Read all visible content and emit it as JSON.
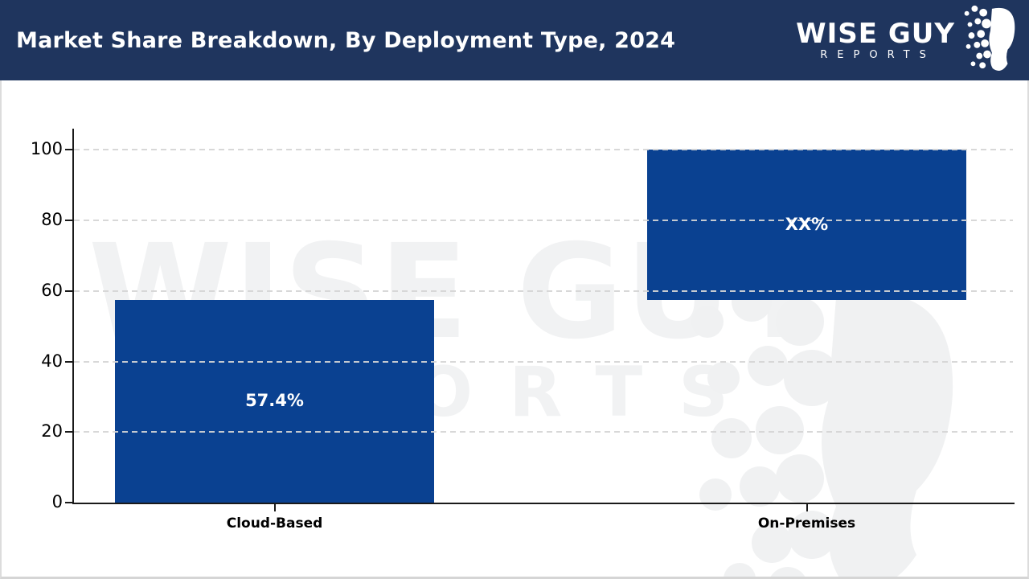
{
  "header": {
    "title": "Market Share Breakdown, By Deployment Type, 2024",
    "logo": {
      "name": "WISE GUY REPORTS",
      "line1": "WISE GUY",
      "line2": "REPORTS"
    }
  },
  "watermark": {
    "line1": "WISE GUY",
    "line2": "REPORTS"
  },
  "colors": {
    "header_bg": "#1f355e",
    "bar": "#0a4191",
    "grid": "#d7d7d7",
    "axis": "#1a1a1a",
    "watermark": "#f1f2f3",
    "value_label": "#ffffff"
  },
  "chart_data": {
    "type": "bar",
    "title": "Market Share Breakdown, By Deployment Type, 2024",
    "categories": [
      "Cloud-Based",
      "On-Premises"
    ],
    "bars": [
      {
        "category": "Cloud-Based",
        "start": 0,
        "end": 57.4,
        "label": "57.4%"
      },
      {
        "category": "On-Premises",
        "start": 57.4,
        "end": 100,
        "label": "XX%"
      }
    ],
    "yticks": [
      0,
      20,
      40,
      60,
      80,
      100
    ],
    "ylim": [
      0,
      106
    ],
    "grid": "horizontal-dashed",
    "legend": "none",
    "bar_color": "#0a4191"
  }
}
